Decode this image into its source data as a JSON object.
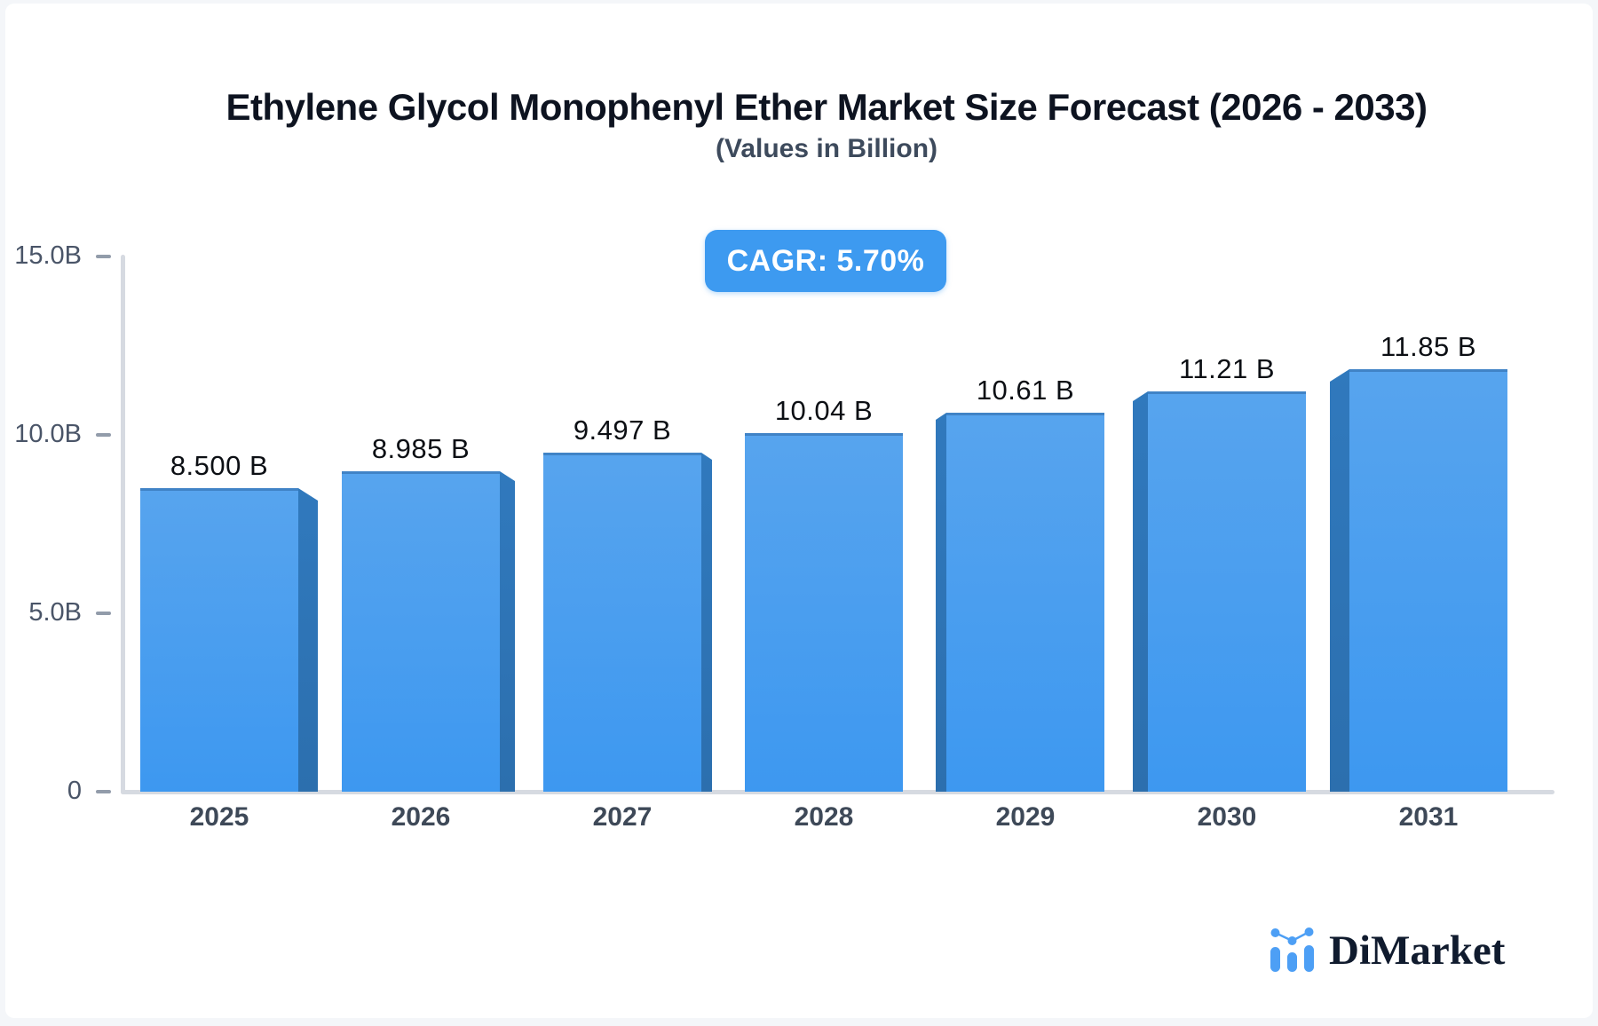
{
  "page": {
    "background": "#f4f6f9",
    "card_background": "#ffffff"
  },
  "header": {
    "title": "Ethylene Glycol Monophenyl Ether Market Size Forecast (2026 - 2033)",
    "subtitle": "(Values in Billion)"
  },
  "badge": {
    "label": "CAGR: 5.70%",
    "background": "#3d9af0",
    "text_color": "#ffffff"
  },
  "chart_data": {
    "type": "bar",
    "title": "Ethylene Glycol Monophenyl Ether Market Size Forecast (2026 - 2033)",
    "subtitle": "(Values in Billion)",
    "categories": [
      "2025",
      "2026",
      "2027",
      "2028",
      "2029",
      "2030",
      "2031"
    ],
    "values": [
      8.5,
      8.985,
      9.497,
      10.04,
      10.61,
      11.21,
      11.85
    ],
    "value_labels": [
      "8.500 B",
      "8.985 B",
      "9.497 B",
      "10.04 B",
      "10.61 B",
      "11.21 B",
      "11.85 B"
    ],
    "xlabel": "",
    "ylabel": "",
    "ylim": [
      0,
      15
    ],
    "yticks": [
      {
        "value": 0,
        "label": "0"
      },
      {
        "value": 5,
        "label": "5.0B"
      },
      {
        "value": 10,
        "label": "10.0B"
      },
      {
        "value": 15,
        "label": "15.0B"
      }
    ],
    "grid": false,
    "legend": false,
    "bar_face_color_top": "#57a4ee",
    "bar_face_color_bottom": "#3d98f0",
    "bar_side_color": "#2e74b5",
    "axis_color": "#d6dae1",
    "tick_label_color": "#4a5568"
  },
  "logo": {
    "text": "DiMarket",
    "icon": "mini-bar-chart-icon",
    "icon_color": "#4d9ff5",
    "text_color": "#101b2e"
  }
}
